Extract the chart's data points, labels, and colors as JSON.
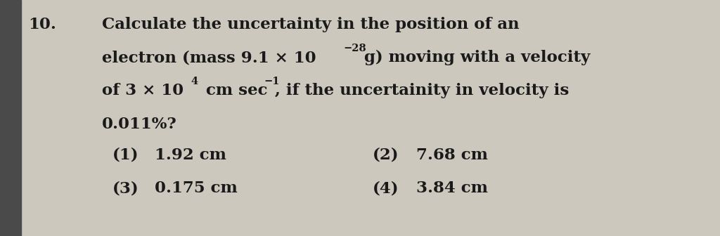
{
  "background_color": "#cdc8be",
  "left_bar_color": "#4a4a4a",
  "text_color": "#1a1a1a",
  "figsize": [
    10.24,
    3.36
  ],
  "dpi": 100,
  "q_num": "10.",
  "line1": "Calculate the uncertainty in the position of an",
  "line2a": "electron (mass 9.1 × 10",
  "line2_sup": "−28",
  "line2b": " g) moving with a velocity",
  "line3a": "of 3 × 10",
  "line3_sup1": "4",
  "line3b": " cm sec",
  "line3_sup2": "−1",
  "line3c": ", if the uncertainity in velocity is",
  "line4": "0.011%?",
  "opt1_num": "(1)",
  "opt1_val": "1.92 cm",
  "opt2_num": "(2)",
  "opt2_val": "7.68 cm",
  "opt3_num": "(3)",
  "opt3_val": "0.175 cm",
  "opt4_num": "(4)",
  "opt4_val": "3.84 cm"
}
